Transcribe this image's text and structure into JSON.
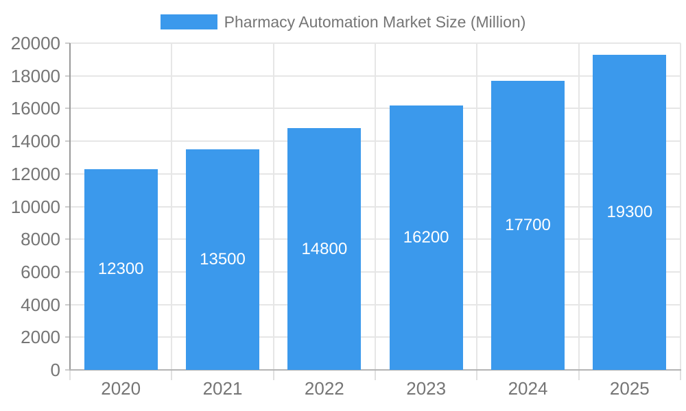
{
  "legend": {
    "label": "Pharmacy Automation Market Size (Million)"
  },
  "chart_data": {
    "type": "bar",
    "title": "Pharmacy Automation Market Size (Million)",
    "categories": [
      "2020",
      "2021",
      "2022",
      "2023",
      "2024",
      "2025"
    ],
    "values": [
      12300,
      13500,
      14800,
      16200,
      17700,
      19300
    ],
    "xlabel": "",
    "ylabel": "",
    "ylim": [
      0,
      20000
    ],
    "ytick_step": 2000,
    "grid": true,
    "legend_position": "top-center"
  },
  "colors": {
    "bar": "#3B99EC",
    "grid": "#E6E6E6",
    "axis_y": "#999999",
    "axis_x": "#B3B3B3",
    "y_tick": "#CCCCCC",
    "x_tick": "#E0E0E0",
    "label_text": "#757575",
    "value_text": "#FFFFFF"
  }
}
